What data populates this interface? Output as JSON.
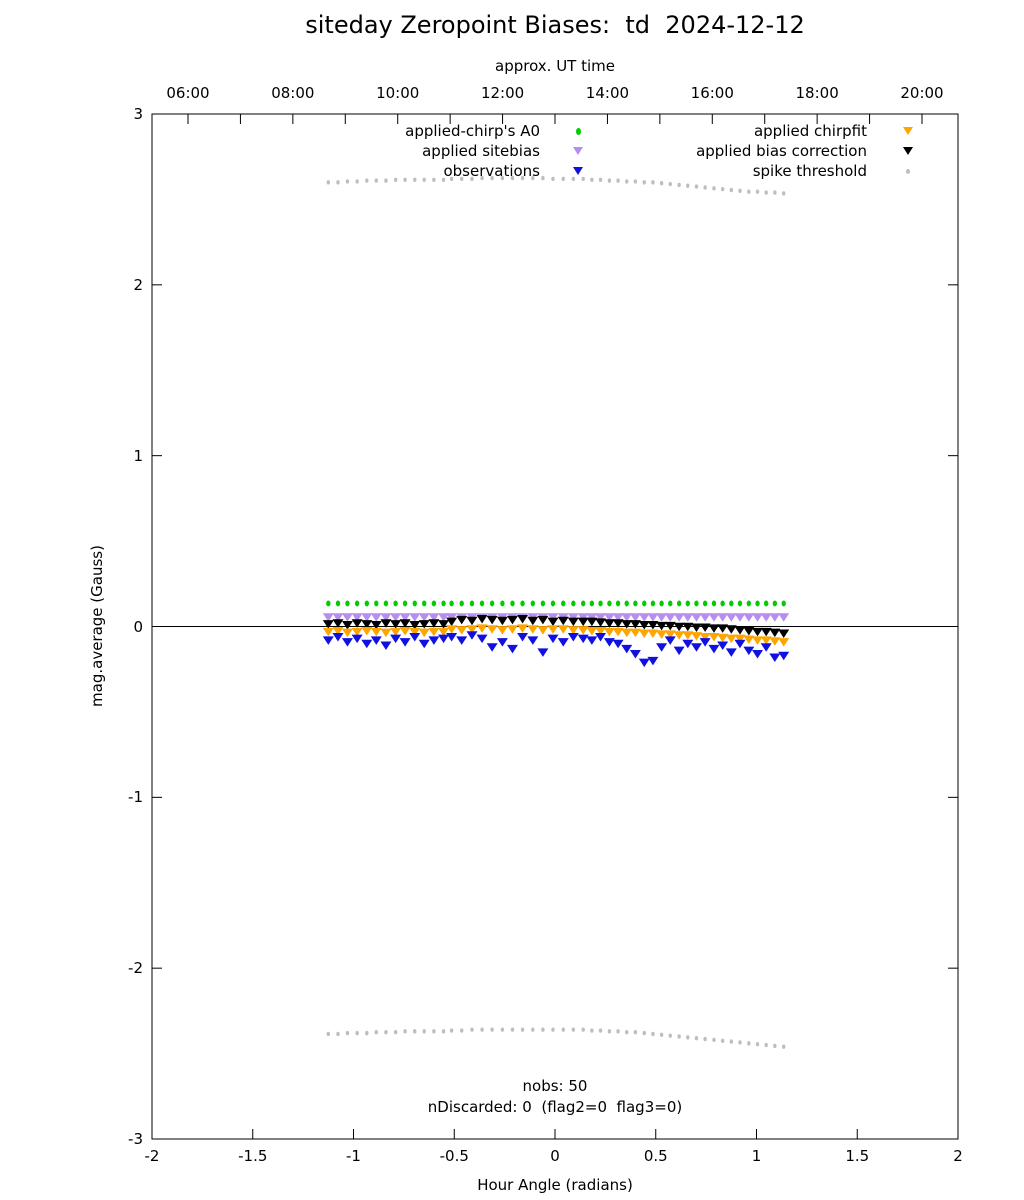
{
  "figure": {
    "title": "siteday Zeropoint Biases:  td  2024-12-12",
    "top_axis": {
      "label": "approx. UT time",
      "labeled_hours": [
        6,
        8,
        10,
        12,
        14,
        16,
        18,
        20
      ],
      "tick_labels": [
        "06:00",
        "08:00",
        "10:00",
        "12:00",
        "14:00",
        "16:00",
        "18:00",
        "20:00"
      ],
      "minor_tick_hours": [
        6,
        7,
        8,
        9,
        10,
        11,
        12,
        13,
        14,
        15,
        16,
        17,
        18,
        19,
        20
      ]
    },
    "x_axis": {
      "label": "Hour Angle (radians)",
      "tick_values": [
        -2,
        -1.5,
        -1,
        -0.5,
        0,
        0.5,
        1,
        1.5,
        2
      ],
      "tick_labels": [
        "-2",
        "-1.5",
        "-1",
        "-0.5",
        "0",
        "0.5",
        "1",
        "1.5",
        "2"
      ]
    },
    "y_axis": {
      "label": "mag.average (Gauss)",
      "tick_values": [
        3,
        2,
        1,
        0,
        -1,
        -2,
        -3
      ],
      "tick_labels": [
        "3",
        "2",
        "1",
        "0",
        "-1",
        "-2",
        "-3"
      ]
    },
    "annotations": [
      "nobs: 50",
      "nDiscarded: 0  (flag2=0  flag3=0)"
    ]
  },
  "chart_data": {
    "type": "scatter",
    "title": "siteday Zeropoint Biases:  td  2024-12-12",
    "xlabel": "Hour Angle (radians)",
    "ylabel": "mag.average (Gauss)",
    "xlim": [
      -2,
      2
    ],
    "ylim": [
      -3,
      3
    ],
    "grid": false,
    "legend_position": "top-inside-two-columns",
    "nobs": 50,
    "x": [
      -1.125,
      -1.077,
      -1.03,
      -0.982,
      -0.934,
      -0.887,
      -0.839,
      -0.791,
      -0.744,
      -0.696,
      -0.649,
      -0.601,
      -0.553,
      -0.513,
      -0.463,
      -0.412,
      -0.362,
      -0.312,
      -0.261,
      -0.211,
      -0.161,
      -0.11,
      -0.06,
      -0.01,
      0.041,
      0.091,
      0.14,
      0.183,
      0.226,
      0.27,
      0.313,
      0.356,
      0.399,
      0.443,
      0.486,
      0.529,
      0.572,
      0.616,
      0.659,
      0.702,
      0.745,
      0.789,
      0.832,
      0.875,
      0.918,
      0.962,
      1.005,
      1.048,
      1.091,
      1.135
    ],
    "series": [
      {
        "name": "applied-chirp's A0",
        "marker": "dot",
        "color": "#00CC00",
        "y": [
          0.135,
          0.135,
          0.135,
          0.135,
          0.135,
          0.135,
          0.135,
          0.135,
          0.135,
          0.135,
          0.135,
          0.135,
          0.135,
          0.135,
          0.135,
          0.135,
          0.135,
          0.135,
          0.135,
          0.135,
          0.135,
          0.135,
          0.135,
          0.135,
          0.135,
          0.135,
          0.135,
          0.135,
          0.135,
          0.135,
          0.135,
          0.135,
          0.135,
          0.135,
          0.135,
          0.135,
          0.135,
          0.135,
          0.135,
          0.135,
          0.135,
          0.135,
          0.135,
          0.135,
          0.135,
          0.135,
          0.135,
          0.135,
          0.135,
          0.135
        ]
      },
      {
        "name": "applied chirpfit",
        "marker": "triangle-down",
        "color": "#FFA500",
        "y": [
          -0.03,
          -0.025,
          -0.035,
          -0.03,
          -0.025,
          -0.03,
          -0.035,
          -0.03,
          -0.025,
          -0.03,
          -0.035,
          -0.03,
          -0.03,
          -0.015,
          -0.02,
          -0.015,
          -0.01,
          -0.015,
          -0.02,
          -0.015,
          -0.01,
          -0.015,
          -0.02,
          -0.015,
          -0.015,
          -0.02,
          -0.02,
          -0.025,
          -0.025,
          -0.03,
          -0.03,
          -0.035,
          -0.035,
          -0.04,
          -0.04,
          -0.045,
          -0.045,
          -0.05,
          -0.05,
          -0.055,
          -0.06,
          -0.06,
          -0.065,
          -0.07,
          -0.07,
          -0.075,
          -0.08,
          -0.08,
          -0.085,
          -0.09
        ]
      },
      {
        "name": "applied sitebias",
        "marker": "triangle-down",
        "color": "#B78EF0",
        "y": [
          0.055,
          0.055,
          0.055,
          0.055,
          0.055,
          0.055,
          0.055,
          0.055,
          0.055,
          0.055,
          0.055,
          0.055,
          0.055,
          0.055,
          0.055,
          0.055,
          0.055,
          0.055,
          0.055,
          0.055,
          0.055,
          0.055,
          0.055,
          0.055,
          0.055,
          0.055,
          0.055,
          0.055,
          0.055,
          0.055,
          0.055,
          0.055,
          0.055,
          0.055,
          0.055,
          0.055,
          0.055,
          0.055,
          0.055,
          0.055,
          0.055,
          0.055,
          0.055,
          0.055,
          0.055,
          0.055,
          0.055,
          0.055,
          0.055,
          0.055
        ]
      },
      {
        "name": "applied bias correction",
        "marker": "triangle-down",
        "color": "#000000",
        "y": [
          0.015,
          0.02,
          0.01,
          0.02,
          0.015,
          0.01,
          0.02,
          0.015,
          0.02,
          0.01,
          0.015,
          0.02,
          0.015,
          0.03,
          0.04,
          0.035,
          0.045,
          0.04,
          0.035,
          0.04,
          0.045,
          0.035,
          0.04,
          0.03,
          0.035,
          0.03,
          0.03,
          0.03,
          0.025,
          0.02,
          0.02,
          0.015,
          0.015,
          0.01,
          0.01,
          0.005,
          0.005,
          0.0,
          0.0,
          -0.005,
          -0.005,
          -0.01,
          -0.01,
          -0.015,
          -0.02,
          -0.025,
          -0.03,
          -0.03,
          -0.035,
          -0.04
        ]
      },
      {
        "name": "observations",
        "marker": "triangle-down",
        "color": "#1010E0",
        "y": [
          -0.08,
          -0.06,
          -0.09,
          -0.07,
          -0.1,
          -0.08,
          -0.11,
          -0.07,
          -0.09,
          -0.06,
          -0.1,
          -0.08,
          -0.07,
          -0.06,
          -0.08,
          -0.05,
          -0.07,
          -0.12,
          -0.09,
          -0.13,
          -0.06,
          -0.08,
          -0.15,
          -0.07,
          -0.09,
          -0.06,
          -0.07,
          -0.08,
          -0.06,
          -0.09,
          -0.1,
          -0.13,
          -0.16,
          -0.21,
          -0.2,
          -0.12,
          -0.08,
          -0.14,
          -0.1,
          -0.12,
          -0.09,
          -0.13,
          -0.11,
          -0.15,
          -0.1,
          -0.14,
          -0.16,
          -0.12,
          -0.18,
          -0.17
        ]
      },
      {
        "name": "spike threshold",
        "marker": "small-dot",
        "color": "#BEBEBE",
        "y_upper": [
          2.6,
          2.6,
          2.605,
          2.605,
          2.61,
          2.61,
          2.61,
          2.615,
          2.615,
          2.615,
          2.615,
          2.615,
          2.615,
          2.62,
          2.62,
          2.62,
          2.625,
          2.625,
          2.625,
          2.625,
          2.625,
          2.625,
          2.625,
          2.62,
          2.62,
          2.62,
          2.62,
          2.615,
          2.615,
          2.61,
          2.61,
          2.605,
          2.605,
          2.6,
          2.6,
          2.595,
          2.59,
          2.585,
          2.58,
          2.575,
          2.57,
          2.565,
          2.56,
          2.555,
          2.55,
          2.545,
          2.545,
          2.54,
          2.54,
          2.535
        ],
        "y_lower": [
          -2.385,
          -2.385,
          -2.38,
          -2.38,
          -2.38,
          -2.375,
          -2.375,
          -2.375,
          -2.37,
          -2.37,
          -2.37,
          -2.37,
          -2.37,
          -2.365,
          -2.365,
          -2.36,
          -2.36,
          -2.36,
          -2.36,
          -2.36,
          -2.36,
          -2.36,
          -2.36,
          -2.36,
          -2.36,
          -2.36,
          -2.36,
          -2.365,
          -2.365,
          -2.37,
          -2.37,
          -2.375,
          -2.375,
          -2.38,
          -2.385,
          -2.39,
          -2.395,
          -2.4,
          -2.405,
          -2.41,
          -2.415,
          -2.42,
          -2.425,
          -2.43,
          -2.435,
          -2.44,
          -2.445,
          -2.45,
          -2.455,
          -2.46
        ]
      }
    ]
  }
}
